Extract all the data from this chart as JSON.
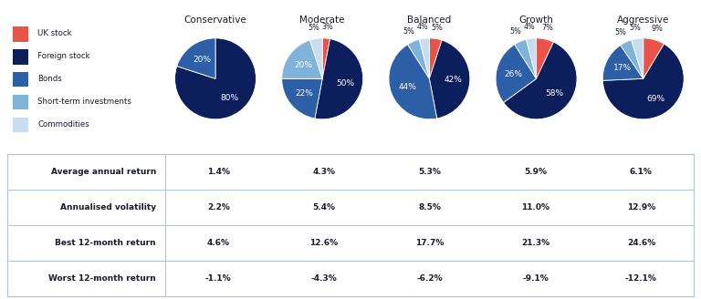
{
  "columns": [
    "Conservative",
    "Moderate",
    "Balanced",
    "Growth",
    "Aggressive"
  ],
  "pie_data": [
    [
      0,
      80,
      20,
      0,
      0
    ],
    [
      3,
      50,
      22,
      20,
      5
    ],
    [
      5,
      42,
      44,
      5,
      4
    ],
    [
      7,
      58,
      26,
      5,
      4
    ],
    [
      9,
      69,
      17,
      5,
      5
    ]
  ],
  "pie_labels": [
    [
      "",
      "80%",
      "20%",
      "",
      ""
    ],
    [
      "3%",
      "50%",
      "22%",
      "20%",
      "5%"
    ],
    [
      "5%",
      "42%",
      "44%",
      "5%",
      "4%"
    ],
    [
      "7%",
      "58%",
      "26%",
      "5%",
      "4%"
    ],
    [
      "9%",
      "69%",
      "17%",
      "5%",
      "5%"
    ]
  ],
  "slice_colors": [
    "#e8534a",
    "#0c1f5c",
    "#2d5fa6",
    "#7fb3d9",
    "#c8ddf0"
  ],
  "legend_labels": [
    "UK stock",
    "Foreign stock",
    "Bonds",
    "Short-term investments",
    "Commodities"
  ],
  "table_rows": [
    [
      "Average annual return",
      "1.4%",
      "4.3%",
      "5.3%",
      "5.9%",
      "6.1%"
    ],
    [
      "Annualised volatility",
      "2.2%",
      "5.4%",
      "8.5%",
      "11.0%",
      "12.9%"
    ],
    [
      "Best 12-month return",
      "4.6%",
      "12.6%",
      "17.7%",
      "21.3%",
      "24.6%"
    ],
    [
      "Worst 12-month return",
      "-1.1%",
      "-4.3%",
      "-6.2%",
      "-9.1%",
      "-12.1%"
    ]
  ],
  "bg_color": "#ffffff",
  "table_row_bg": [
    "#dce8f5",
    "#ffffff",
    "#dce8f5",
    "#ffffff"
  ],
  "border_color": "#b0c4de",
  "col_header_color": "#1a1a2e",
  "text_color": "#1a1a2e"
}
